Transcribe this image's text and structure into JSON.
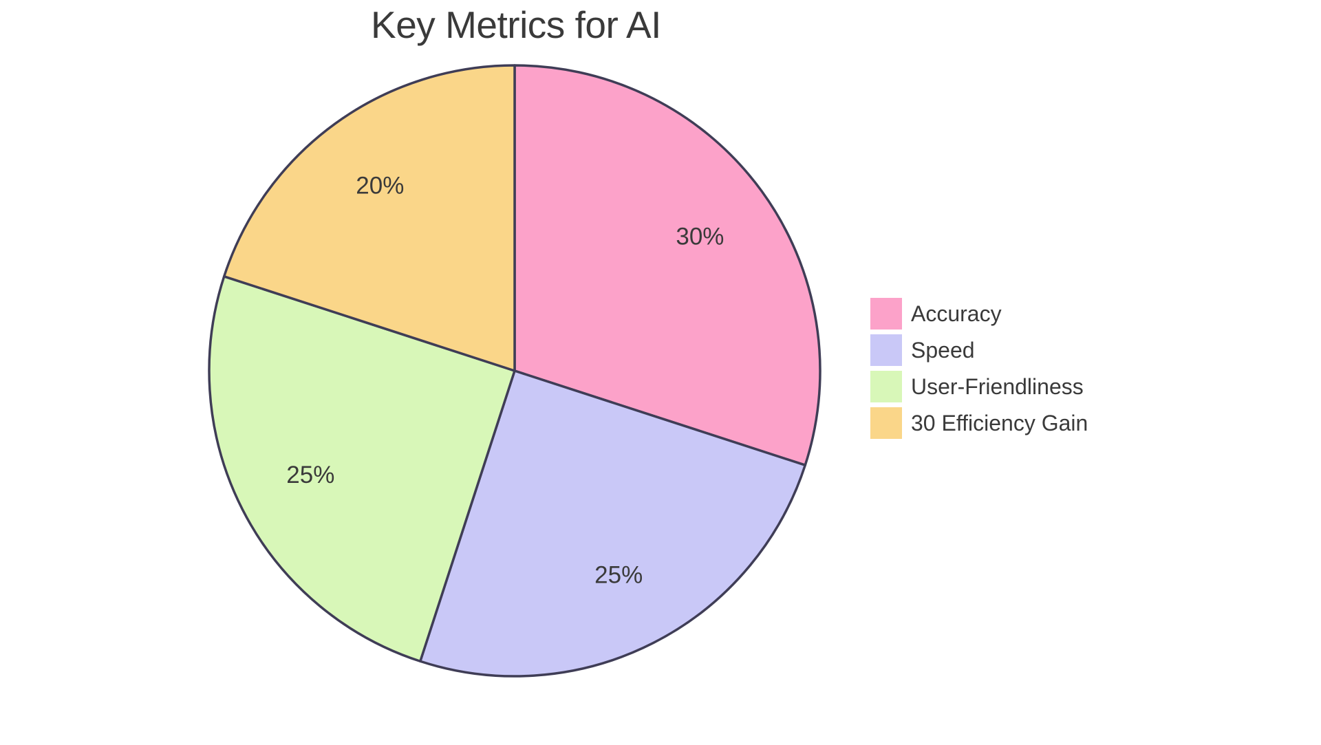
{
  "page": {
    "background_color": "#FFFFFF"
  },
  "chart_data": {
    "type": "pie",
    "title": "Key Metrics for AI",
    "start_angle_deg": 0,
    "direction": "clockwise",
    "stroke_color": "#3F3D56",
    "stroke_width": 3.5,
    "text_color": "#3A3A3A",
    "legend_position": "right",
    "grid": false,
    "slices": [
      {
        "label": "Accuracy",
        "value": 30,
        "percent_label": "30%",
        "color": "#FCA2C9"
      },
      {
        "label": "Speed",
        "value": 25,
        "percent_label": "25%",
        "color": "#C9C8F7"
      },
      {
        "label": "User-Friendliness",
        "value": 25,
        "percent_label": "25%",
        "color": "#D8F7B8"
      },
      {
        "label": "30 Efficiency Gain",
        "value": 20,
        "percent_label": "20%",
        "color": "#FAD689"
      }
    ]
  }
}
